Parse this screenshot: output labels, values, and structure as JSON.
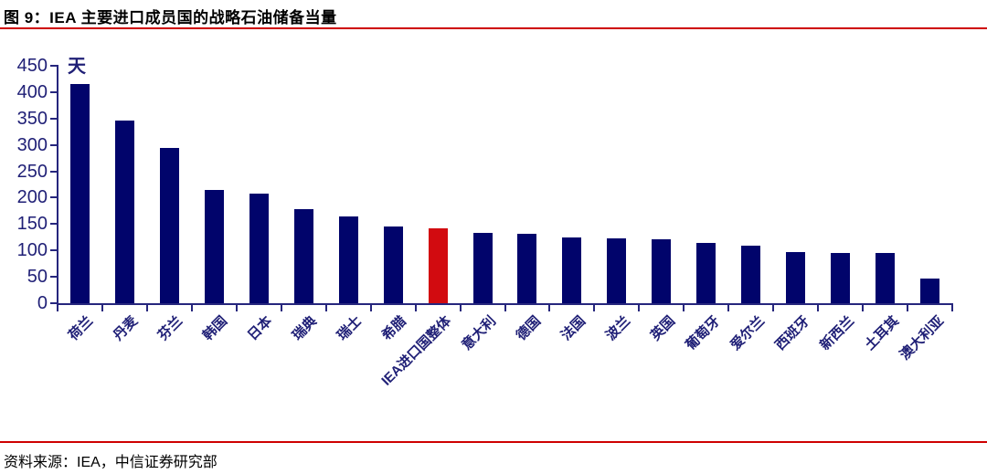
{
  "page": {
    "title": "图 9：IEA 主要进口成员国的战略石油储备当量",
    "source": "资料来源：IEA，中信证券研究部"
  },
  "colors": {
    "bar_navy": "#01046B",
    "bar_highlight_red": "#D20B10",
    "axis_line_navy": "#26267D",
    "axis_text_navy": "#1F1F76",
    "divider_red": "#CE0000",
    "title_text": "#000000"
  },
  "chart_data": {
    "type": "bar",
    "title": "图 9：IEA 主要进口成员国的战略石油储备当量",
    "unit_label": "天",
    "ylabel": "天",
    "xlabel": "",
    "categories": [
      "荷兰",
      "丹麦",
      "芬兰",
      "韩国",
      "日本",
      "瑞典",
      "瑞士",
      "希腊",
      "IEA进口国整体",
      "意大利",
      "德国",
      "法国",
      "波兰",
      "英国",
      "葡萄牙",
      "爱尔兰",
      "西班牙",
      "新西兰",
      "土耳其",
      "澳大利亚"
    ],
    "values": [
      415,
      347,
      294,
      215,
      208,
      178,
      164,
      146,
      142,
      133,
      131,
      125,
      123,
      122,
      115,
      109,
      97,
      96,
      95,
      47
    ],
    "highlight_category": "IEA进口国整体",
    "highlight_index": 8,
    "y_ticks": [
      0,
      50,
      100,
      150,
      200,
      250,
      300,
      350,
      400,
      450
    ],
    "ylim": [
      0,
      450
    ],
    "grid": false,
    "legend": false,
    "source": "资料来源：IEA，中信证券研究部"
  }
}
